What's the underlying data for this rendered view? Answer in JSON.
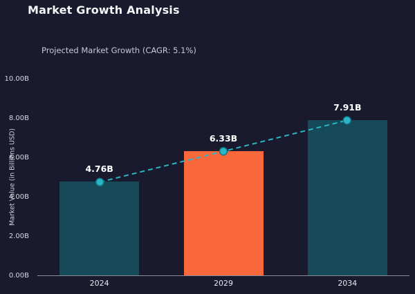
{
  "title": "Market Growth Analysis",
  "subtitle": "Projected Market Growth (CAGR: 5.1%)",
  "colors": {
    "background": "#1a1a2e",
    "teal_bar": "#164a58",
    "orange_bar": "#f9683a",
    "accent_cyan": "#2ab6c4",
    "title_text": "#f5f5f7",
    "muted_text": "#c9c9d4",
    "axis_line": "#8b8b9a"
  },
  "chart_data": {
    "type": "bar",
    "title": "Market Growth Analysis",
    "subtitle": "Projected Market Growth (CAGR: 5.1%)",
    "categories": [
      "2024",
      "2029",
      "2034"
    ],
    "values": [
      4.76,
      6.33,
      7.91
    ],
    "labels": [
      "4.76B",
      "6.33B",
      "7.91B"
    ],
    "bar_colors": [
      "#164a58",
      "#f9683a",
      "#164a58"
    ],
    "line_color": "#2ab6c4",
    "marker_color": "#2ab6c4",
    "marker_edge": "#117788",
    "trendline": "dashed line connecting bar tops with circular markers",
    "xlabel": "",
    "ylabel": "Market Value (in Billions USD)",
    "ylim": [
      0,
      10
    ],
    "yticks": [
      {
        "value": 0,
        "label": "0.00B"
      },
      {
        "value": 2,
        "label": "2.00B"
      },
      {
        "value": 4,
        "label": "4.00B"
      },
      {
        "value": 6,
        "label": "6.00B"
      },
      {
        "value": 8,
        "label": "8.00B"
      },
      {
        "value": 10,
        "label": "10.00B"
      }
    ],
    "grid": false,
    "legend": "none"
  }
}
